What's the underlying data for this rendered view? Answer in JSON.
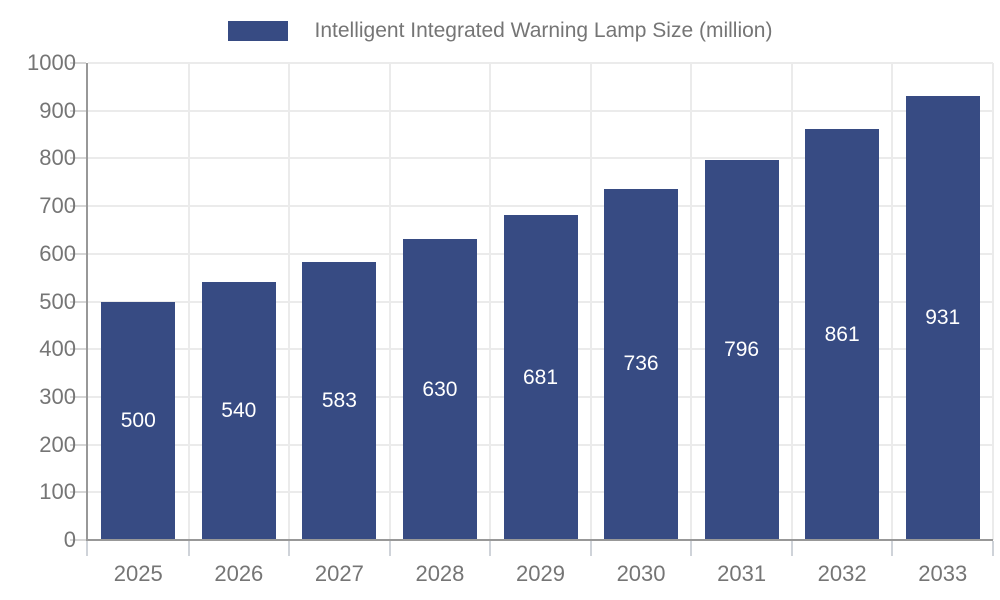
{
  "legend": {
    "label": "Intelligent Integrated Warning Lamp Size (million)"
  },
  "chart_data": {
    "type": "bar",
    "title": "Intelligent Integrated Warning Lamp Size (million)",
    "series_name": "Intelligent Integrated Warning Lamp Size (million)",
    "categories": [
      "2025",
      "2026",
      "2027",
      "2028",
      "2029",
      "2030",
      "2031",
      "2032",
      "2033"
    ],
    "values": [
      500,
      540,
      583,
      630,
      681,
      736,
      796,
      861,
      931
    ],
    "xlabel": "",
    "ylabel": "",
    "ylim": [
      0,
      1000
    ],
    "yticks": [
      0,
      100,
      200,
      300,
      400,
      500,
      600,
      700,
      800,
      900,
      1000
    ],
    "grid": "on",
    "legend_position": "top-center",
    "bar_color": "#374B83",
    "bar_label_color": "#FFFFFF",
    "axis_text_color": "#757575",
    "legend_text_color": "#757575",
    "axis_line_color": "#989898",
    "gridline_color": "#EBEBEB",
    "y_tick_color": "#D6D6D6",
    "x_tick_color": "#CFD3D9",
    "background_color": "#FFFFFF"
  }
}
